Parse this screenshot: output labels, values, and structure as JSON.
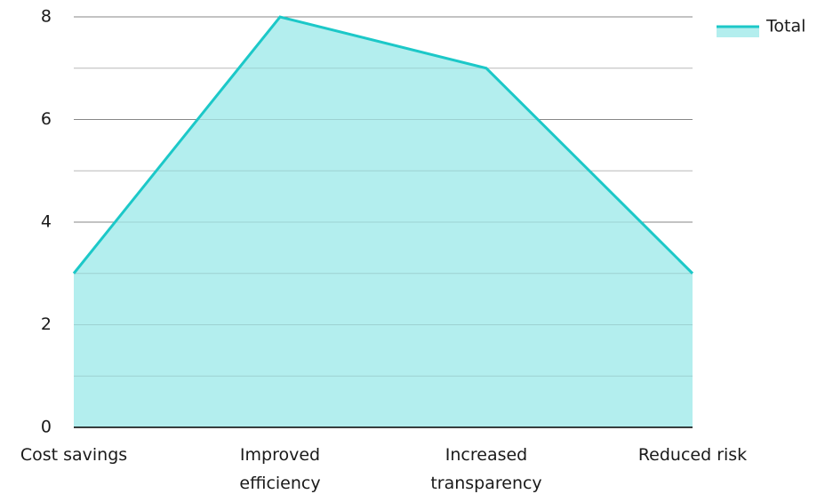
{
  "chart_data": {
    "type": "area",
    "categories": [
      [
        "Cost savings"
      ],
      [
        "Improved",
        "efficiency"
      ],
      [
        "Increased",
        "transparency"
      ],
      [
        "Reduced risk"
      ]
    ],
    "series": [
      {
        "name": "Total",
        "values": [
          3,
          8,
          7,
          3
        ]
      }
    ],
    "ylim": [
      0,
      8
    ],
    "yticks": [
      0,
      2,
      4,
      6,
      8
    ],
    "minor_gridlines": [
      1,
      3,
      5,
      7
    ],
    "grid": true,
    "legend": {
      "position": "top-right"
    },
    "title": "",
    "xlabel": "",
    "ylabel": ""
  },
  "colors": {
    "line": "#1cc8c8",
    "fill": "#b3eeee",
    "major_grid": "#9a9a9a",
    "minor_grid": "#d4d4d4",
    "baseline": "#000000"
  }
}
